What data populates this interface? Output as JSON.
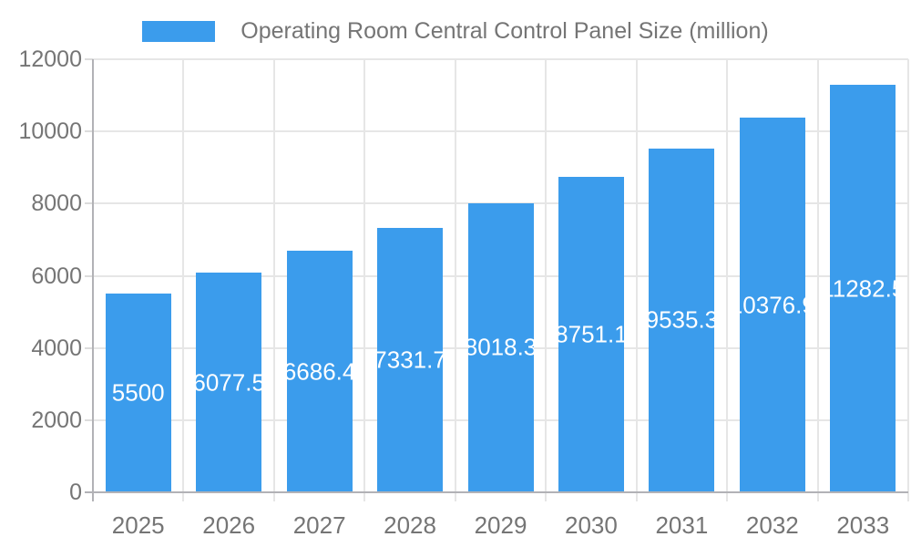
{
  "legend": {
    "position": "top"
  },
  "chart_data": {
    "type": "bar",
    "title": "Operating Room Central Control Panel Size (million)",
    "categories": [
      "2025",
      "2026",
      "2027",
      "2028",
      "2029",
      "2030",
      "2031",
      "2032",
      "2033"
    ],
    "values": [
      5500,
      6077.5,
      6686.4,
      7331.7,
      8018.3,
      8751.1,
      9535.3,
      10376.9,
      11282.5
    ],
    "xlabel": "",
    "ylabel": "",
    "ylim": [
      0,
      12000
    ],
    "yticks": [
      0,
      2000,
      4000,
      6000,
      8000,
      10000,
      12000
    ],
    "grid": true,
    "legend_position": "top",
    "value_labels": "inside-center-white",
    "colors": {
      "bar": "#3b9cec",
      "grid_line": "#e6e6e6",
      "tick_mark": "#dcdcdc",
      "axis_line": "#b2b2b6",
      "tick_text": "#757575",
      "value_label": "#ffffff",
      "background": "#ffffff"
    }
  }
}
